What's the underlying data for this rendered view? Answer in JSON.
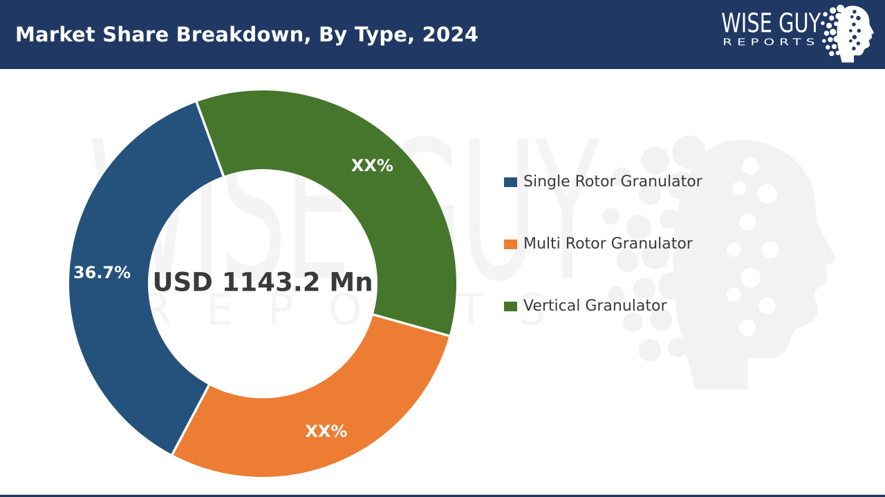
{
  "header": {
    "title": "Market Share Breakdown, By Type, 2024"
  },
  "logo": {
    "brand_line1": "WISE GUY",
    "brand_line2": "REPORTS"
  },
  "watermark": {
    "line1": "WISE GUY",
    "line2": "REPORTS"
  },
  "chart_data": {
    "type": "donut",
    "title": "Market Share Breakdown, By Type, 2024",
    "center_label": "USD 1143.2 Mn",
    "start_angle_deg_clockwise_from_12": -20,
    "slices": [
      {
        "label": "Vertical Granulator",
        "display_label": "XX%",
        "value_pct": 34.9,
        "color": "#45762B"
      },
      {
        "label": "Multi Rotor Granulator",
        "display_label": "XX%",
        "value_pct": 28.4,
        "color": "#EC7D32"
      },
      {
        "label": "Single Rotor Granulator",
        "display_label": "36.7%",
        "value_pct": 36.7,
        "color": "#24527C"
      }
    ],
    "legend": [
      {
        "label": "Single Rotor Granulator",
        "color": "#24527C"
      },
      {
        "label": "Multi Rotor Granulator",
        "color": "#EC7D32"
      },
      {
        "label": "Vertical Granulator",
        "color": "#45762B"
      }
    ]
  },
  "colors": {
    "header_bg": "#203864",
    "page_bg": "#FFFFFF",
    "text_dark": "#3A3A3A",
    "label_text": "#FFFFFF",
    "watermark": "#F4F4F4",
    "bottom_bar": "#203864"
  }
}
